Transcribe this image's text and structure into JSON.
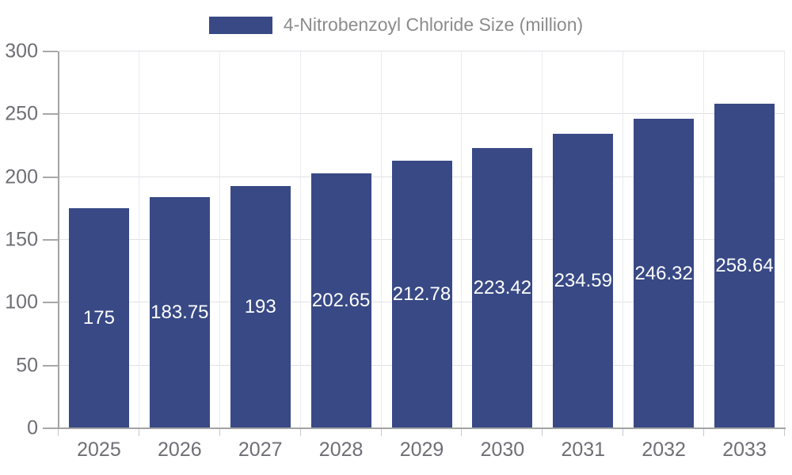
{
  "chart_data": {
    "type": "bar",
    "title": "4-Nitrobenzoyl Chloride Size (million)",
    "legend": [
      "4-Nitrobenzoyl Chloride Size (million)"
    ],
    "legend_position": "top",
    "categories": [
      "2025",
      "2026",
      "2027",
      "2028",
      "2029",
      "2030",
      "2031",
      "2032",
      "2033"
    ],
    "values": [
      175,
      183.75,
      193,
      202.65,
      212.78,
      223.42,
      234.59,
      246.32,
      258.64
    ],
    "value_labels": [
      "175",
      "183.75",
      "193",
      "202.65",
      "212.78",
      "223.42",
      "234.59",
      "246.32",
      "258.64"
    ],
    "xlabel": "",
    "ylabel": "",
    "ylim": [
      0,
      300
    ],
    "y_ticks": [
      0,
      50,
      100,
      150,
      200,
      250,
      300
    ],
    "grid": true,
    "colors": {
      "bar": "#384985",
      "bar_value_text": "#ffffff",
      "axis_line": "#a3a3a3",
      "tick_label": "#6e6e76",
      "legend_text": "#8c8c8c",
      "gridline": "#e2e2e7",
      "background": "#ffffff"
    }
  }
}
